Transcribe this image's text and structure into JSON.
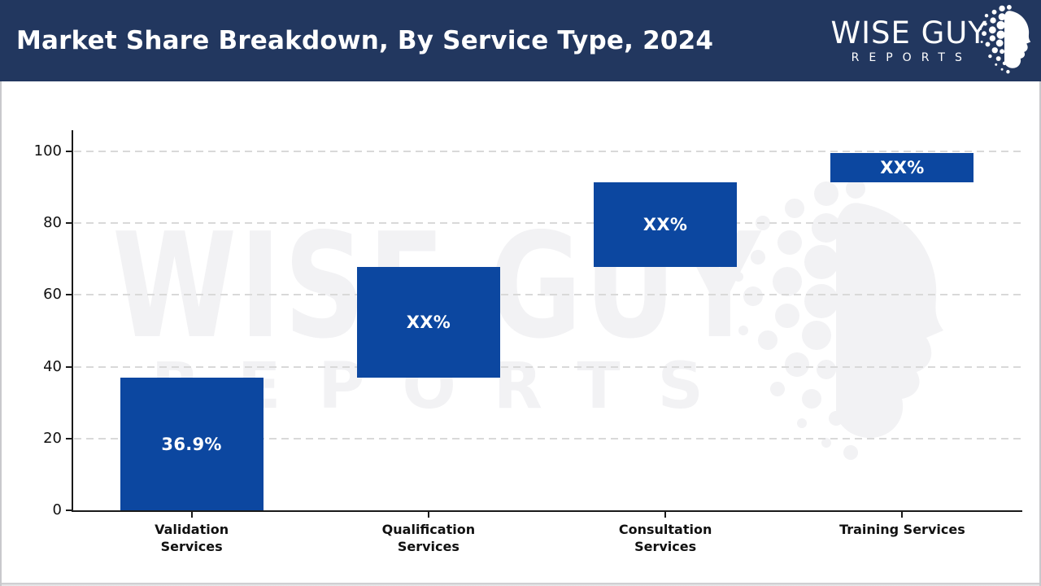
{
  "header": {
    "title": "Market Share Breakdown, By Service Type, 2024",
    "logo": {
      "line1": "WISE GUY",
      "line2": "REPORTS"
    }
  },
  "watermark": {
    "line1": "WISE GUY",
    "line2": "REPORTS"
  },
  "colors": {
    "header_bg": "#22375f",
    "bar": "#0c47a0",
    "grid": "#d9d9d9",
    "axis": "#1a1a1a",
    "watermark": "#f2f2f4",
    "bar_label": "#ffffff",
    "text": "#111111"
  },
  "chart_data": {
    "type": "bar",
    "subtype": "waterfall",
    "title": "Market Share Breakdown, By Service Type, 2024",
    "categories": [
      "Validation Services",
      "Qualification Services",
      "Consultation Services",
      "Training Services"
    ],
    "category_lines": [
      [
        "Validation",
        "Services"
      ],
      [
        "Qualification",
        "Services"
      ],
      [
        "Consultation",
        "Services"
      ],
      [
        "Training Services"
      ]
    ],
    "segments": [
      {
        "category": "Validation Services",
        "start": 0,
        "end": 36.9,
        "label": "36.9%"
      },
      {
        "category": "Qualification Services",
        "start": 36.9,
        "end": 67.8,
        "label": "XX%"
      },
      {
        "category": "Consultation Services",
        "start": 67.8,
        "end": 91.4,
        "label": "XX%"
      },
      {
        "category": "Training Services",
        "start": 91.4,
        "end": 99.6,
        "label": "XX%"
      }
    ],
    "xlabel": "",
    "ylabel": "",
    "yticks": [
      0,
      20,
      40,
      60,
      80,
      100
    ],
    "ylim": [
      0,
      106
    ],
    "grid": "horizontal dashed",
    "legend": "none"
  }
}
